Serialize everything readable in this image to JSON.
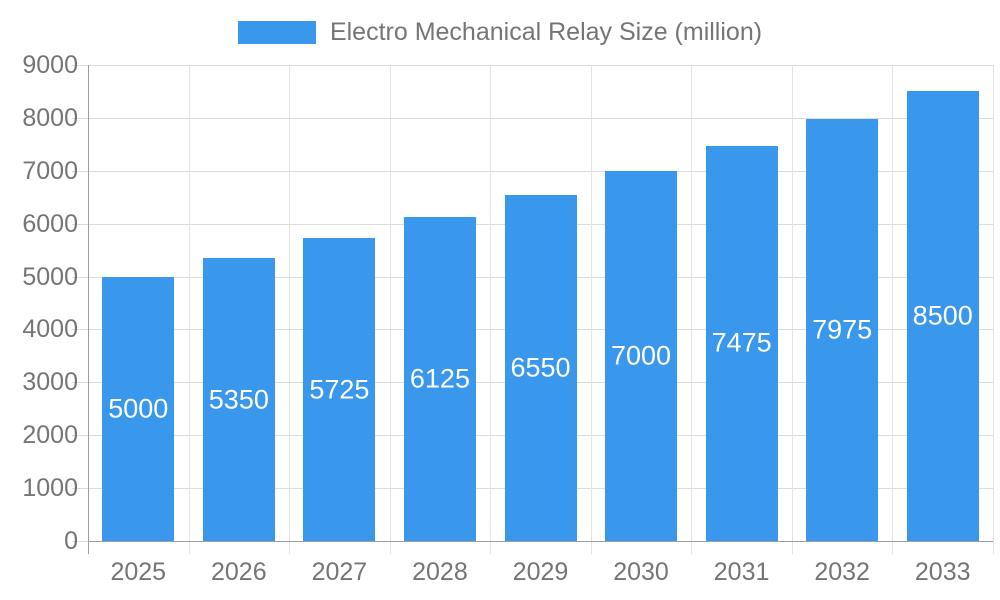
{
  "chart_data": {
    "type": "bar",
    "title": "Electro Mechanical Relay Size (million)",
    "categories": [
      "2025",
      "2026",
      "2027",
      "2028",
      "2029",
      "2030",
      "2031",
      "2032",
      "2033"
    ],
    "values": [
      5000,
      5350,
      5725,
      6125,
      6550,
      7000,
      7475,
      7975,
      8500
    ],
    "series": [
      {
        "name": "Electro Mechanical Relay Size (million)",
        "values": [
          5000,
          5350,
          5725,
          6125,
          6550,
          7000,
          7475,
          7975,
          8500
        ]
      }
    ],
    "xlabel": "",
    "ylabel": "",
    "ylim": [
      0,
      9000
    ],
    "ytick_interval": 1000,
    "yticks": [
      0,
      1000,
      2000,
      3000,
      4000,
      5000,
      6000,
      7000,
      8000,
      9000
    ],
    "grid": true,
    "legend_position": "top-center",
    "value_label_position": "inside-middle"
  },
  "colors": {
    "bar": "#3997EC",
    "gridline": "#dcdcdc",
    "category_line": "#e3e3e3",
    "axis_line": "#9e9e9e",
    "axis_label": "#757575",
    "value_label": "#ffffff",
    "background": "#ffffff"
  }
}
